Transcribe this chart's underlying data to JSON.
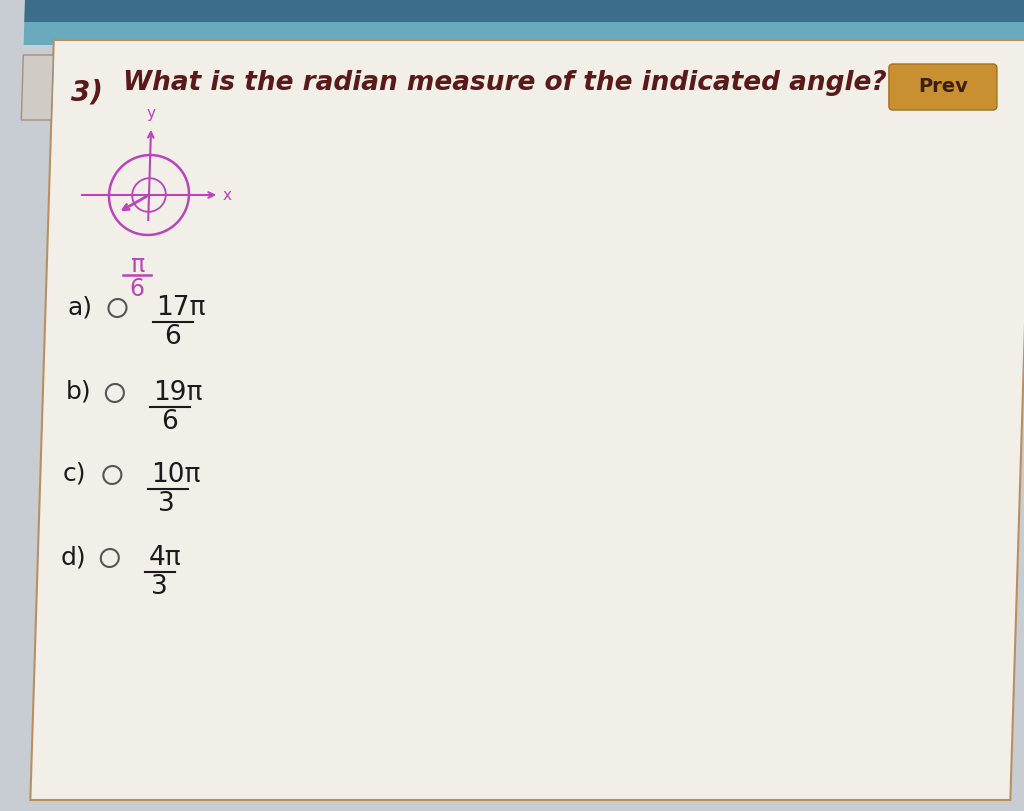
{
  "question_number": "3)",
  "question_text": "What is the radian measure of the indicated angle?",
  "bg_color": "#c8cdd4",
  "content_bg": "#f2efe9",
  "title_color": "#5a1a1a",
  "question_fontsize": 18,
  "options": [
    {
      "label": "a)",
      "numerator": "17π",
      "denominator": "6"
    },
    {
      "label": "b)",
      "numerator": "19π",
      "denominator": "6"
    },
    {
      "label": "c)",
      "numerator": "10π",
      "denominator": "3"
    },
    {
      "label": "d)",
      "numerator": "4π",
      "denominator": "3"
    }
  ],
  "option_fontsize": 18,
  "circle_color": "#bb44bb",
  "prev_button_color": "#c89030",
  "prev_button_text": "Prev",
  "top_bar_color1": "#5090b0",
  "top_bar_color2": "#8bbdd0",
  "left_tab_color": "#d0ccc5",
  "border_color": "#b89060"
}
